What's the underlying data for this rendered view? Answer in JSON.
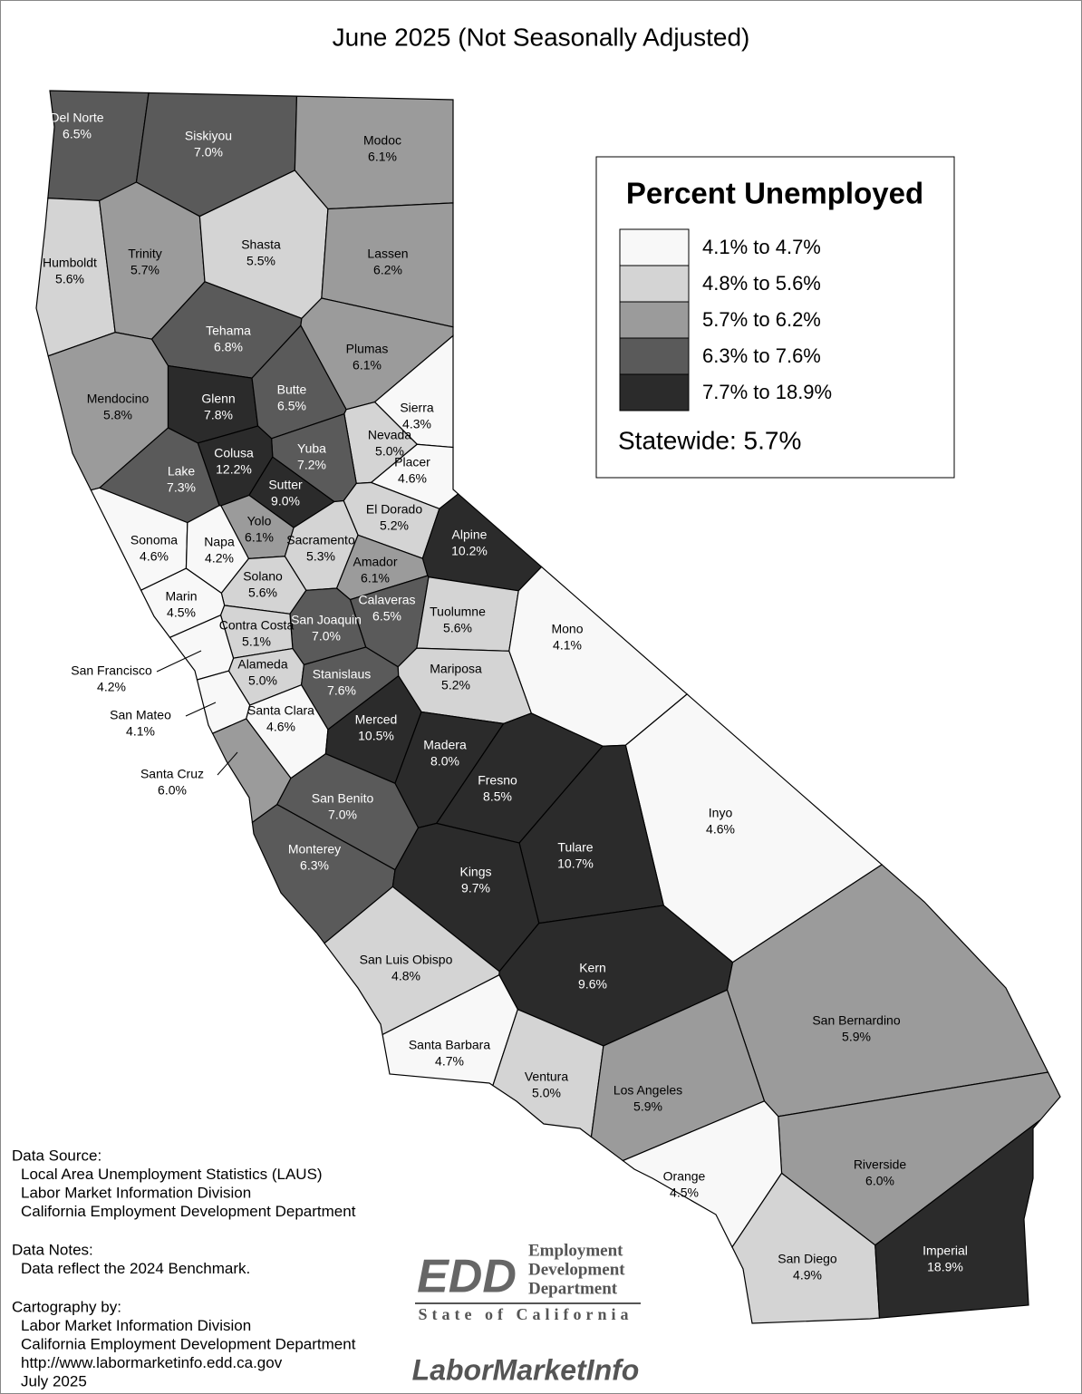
{
  "title": "June 2025 (Not Seasonally Adjusted)",
  "legend": {
    "title": "Percent Unemployed",
    "classes": [
      {
        "label": "4.1% to 4.7%",
        "min": 4.1,
        "max": 4.7,
        "color": "#f8f8f8"
      },
      {
        "label": "4.8% to 5.6%",
        "min": 4.8,
        "max": 5.6,
        "color": "#d4d4d4"
      },
      {
        "label": "5.7% to 6.2%",
        "min": 5.7,
        "max": 6.2,
        "color": "#9b9b9b"
      },
      {
        "label": "6.3% to 7.6%",
        "min": 6.3,
        "max": 7.6,
        "color": "#5a5a5a"
      },
      {
        "label": "7.7% to 18.9%",
        "min": 7.7,
        "max": 18.9,
        "color": "#2b2b2b"
      }
    ],
    "statewide": "Statewide: 5.7%"
  },
  "counties": [
    {
      "name": "Del Norte",
      "value": 6.5,
      "value_label": "6.5%"
    },
    {
      "name": "Siskiyou",
      "value": 7.0,
      "value_label": "7.0%"
    },
    {
      "name": "Modoc",
      "value": 6.1,
      "value_label": "6.1%"
    },
    {
      "name": "Humboldt",
      "value": 5.6,
      "value_label": "5.6%"
    },
    {
      "name": "Trinity",
      "value": 5.7,
      "value_label": "5.7%"
    },
    {
      "name": "Shasta",
      "value": 5.5,
      "value_label": "5.5%"
    },
    {
      "name": "Lassen",
      "value": 6.2,
      "value_label": "6.2%"
    },
    {
      "name": "Tehama",
      "value": 6.8,
      "value_label": "6.8%"
    },
    {
      "name": "Plumas",
      "value": 6.1,
      "value_label": "6.1%"
    },
    {
      "name": "Mendocino",
      "value": 5.8,
      "value_label": "5.8%"
    },
    {
      "name": "Glenn",
      "value": 7.8,
      "value_label": "7.8%"
    },
    {
      "name": "Butte",
      "value": 6.5,
      "value_label": "6.5%"
    },
    {
      "name": "Sierra",
      "value": 4.3,
      "value_label": "4.3%"
    },
    {
      "name": "Nevada",
      "value": 5.0,
      "value_label": "5.0%"
    },
    {
      "name": "Placer",
      "value": 4.6,
      "value_label": "4.6%"
    },
    {
      "name": "Yuba",
      "value": 7.2,
      "value_label": "7.2%"
    },
    {
      "name": "Colusa",
      "value": 12.2,
      "value_label": "12.2%"
    },
    {
      "name": "Lake",
      "value": 7.3,
      "value_label": "7.3%"
    },
    {
      "name": "Sutter",
      "value": 9.0,
      "value_label": "9.0%"
    },
    {
      "name": "Yolo",
      "value": 6.1,
      "value_label": "6.1%"
    },
    {
      "name": "El Dorado",
      "value": 5.2,
      "value_label": "5.2%"
    },
    {
      "name": "Alpine",
      "value": 10.2,
      "value_label": "10.2%"
    },
    {
      "name": "Sonoma",
      "value": 4.6,
      "value_label": "4.6%"
    },
    {
      "name": "Napa",
      "value": 4.2,
      "value_label": "4.2%"
    },
    {
      "name": "Sacramento",
      "value": 5.3,
      "value_label": "5.3%"
    },
    {
      "name": "Amador",
      "value": 6.1,
      "value_label": "6.1%"
    },
    {
      "name": "Solano",
      "value": 5.6,
      "value_label": "5.6%"
    },
    {
      "name": "Marin",
      "value": 4.5,
      "value_label": "4.5%"
    },
    {
      "name": "Calaveras",
      "value": 6.5,
      "value_label": "6.5%"
    },
    {
      "name": "San Joaquin",
      "value": 7.0,
      "value_label": "7.0%"
    },
    {
      "name": "Tuolumne",
      "value": 5.6,
      "value_label": "5.6%"
    },
    {
      "name": "Mono",
      "value": 4.1,
      "value_label": "4.1%"
    },
    {
      "name": "Contra Costa",
      "value": 5.1,
      "value_label": "5.1%"
    },
    {
      "name": "Alameda",
      "value": 5.0,
      "value_label": "5.0%"
    },
    {
      "name": "San Francisco",
      "value": 4.2,
      "value_label": "4.2%"
    },
    {
      "name": "Stanislaus",
      "value": 7.6,
      "value_label": "7.6%"
    },
    {
      "name": "Mariposa",
      "value": 5.2,
      "value_label": "5.2%"
    },
    {
      "name": "San Mateo",
      "value": 4.1,
      "value_label": "4.1%"
    },
    {
      "name": "Santa Clara",
      "value": 4.6,
      "value_label": "4.6%"
    },
    {
      "name": "Merced",
      "value": 10.5,
      "value_label": "10.5%"
    },
    {
      "name": "Madera",
      "value": 8.0,
      "value_label": "8.0%"
    },
    {
      "name": "Santa Cruz",
      "value": 6.0,
      "value_label": "6.0%"
    },
    {
      "name": "Fresno",
      "value": 8.5,
      "value_label": "8.5%"
    },
    {
      "name": "San Benito",
      "value": 7.0,
      "value_label": "7.0%"
    },
    {
      "name": "Inyo",
      "value": 4.6,
      "value_label": "4.6%"
    },
    {
      "name": "Monterey",
      "value": 6.3,
      "value_label": "6.3%"
    },
    {
      "name": "Tulare",
      "value": 10.7,
      "value_label": "10.7%"
    },
    {
      "name": "Kings",
      "value": 9.7,
      "value_label": "9.7%"
    },
    {
      "name": "San Luis Obispo",
      "value": 4.8,
      "value_label": "4.8%"
    },
    {
      "name": "Kern",
      "value": 9.6,
      "value_label": "9.6%"
    },
    {
      "name": "San Bernardino",
      "value": 5.9,
      "value_label": "5.9%"
    },
    {
      "name": "Santa Barbara",
      "value": 4.7,
      "value_label": "4.7%"
    },
    {
      "name": "Ventura",
      "value": 5.0,
      "value_label": "5.0%"
    },
    {
      "name": "Los Angeles",
      "value": 5.9,
      "value_label": "5.9%"
    },
    {
      "name": "Riverside",
      "value": 6.0,
      "value_label": "6.0%"
    },
    {
      "name": "Orange",
      "value": 4.5,
      "value_label": "4.5%"
    },
    {
      "name": "San Diego",
      "value": 4.9,
      "value_label": "4.9%"
    },
    {
      "name": "Imperial",
      "value": 18.9,
      "value_label": "18.9%"
    }
  ],
  "notes": {
    "source_title": "Data Source:",
    "source_lines": [
      "Local Area Unemployment Statistics (LAUS)",
      "Labor Market Information Division",
      "California Employment Development Department"
    ],
    "notes_title": "Data Notes:",
    "notes_lines": [
      "Data reflect the 2024 Benchmark."
    ],
    "cartography_title": "Cartography by:",
    "cartography_lines": [
      "Labor Market Information Division",
      "California Employment Development Department",
      "http://www.labormarketinfo.edd.ca.gov",
      "July 2025"
    ]
  },
  "logos": {
    "edd": "EDD",
    "edd_lines": [
      "Employment",
      "Development",
      "Department"
    ],
    "state": "State of California",
    "lmi": "LaborMarketInfo"
  }
}
